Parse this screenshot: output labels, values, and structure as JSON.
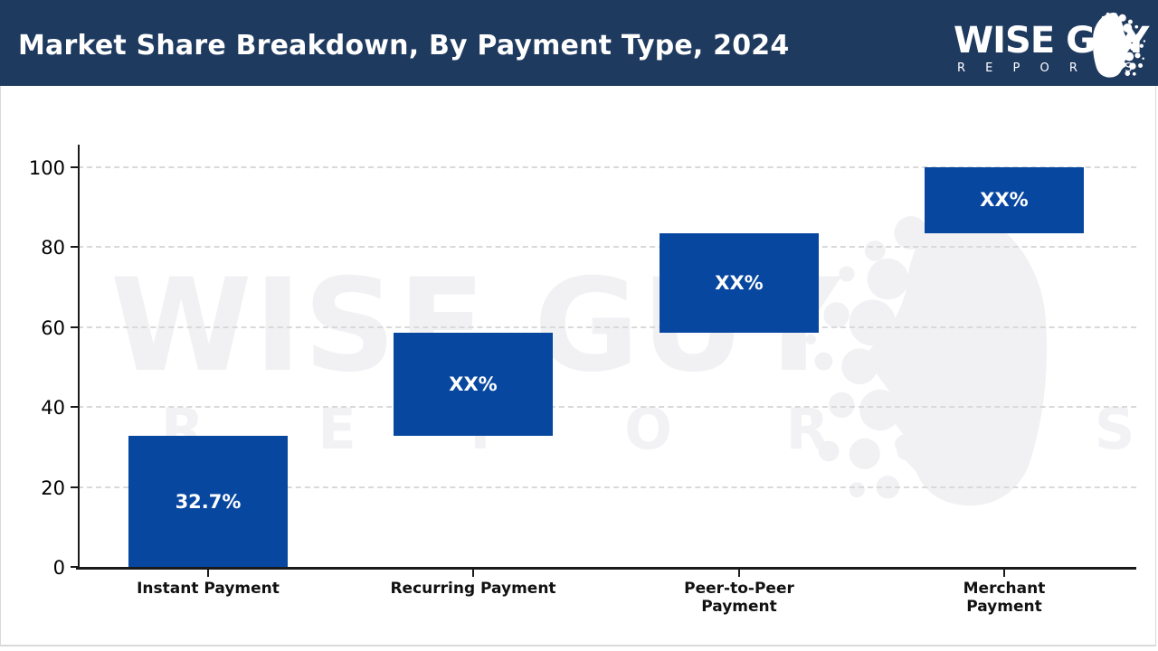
{
  "header": {
    "title": "Market Share Breakdown, By Payment Type, 2024",
    "logo": {
      "name": "WISE GUY",
      "tagline": "R E P O R T S"
    }
  },
  "watermark": {
    "line1": "WISE GUY",
    "line2": "R E P O R T S"
  },
  "chart_data": {
    "type": "bar",
    "subtype": "floating-waterfall",
    "title": "Market Share Breakdown, By Payment Type, 2024",
    "categories": [
      "Instant Payment",
      "Recurring Payment",
      "Peer-to-Peer\nPayment",
      "Merchant Payment"
    ],
    "segments": [
      {
        "category": "Instant Payment",
        "start": 0,
        "end": 32.7,
        "label": "32.7%"
      },
      {
        "category": "Recurring Payment",
        "start": 32.7,
        "end": 58.6,
        "label": "XX%"
      },
      {
        "category": "Peer-to-Peer Payment",
        "start": 58.6,
        "end": 83.5,
        "label": "XX%"
      },
      {
        "category": "Merchant Payment",
        "start": 83.5,
        "end": 100,
        "label": "XX%"
      }
    ],
    "xlabel": "",
    "ylabel": "",
    "ylim": [
      0,
      105
    ],
    "yticks": [
      0,
      20,
      40,
      60,
      80,
      100
    ],
    "grid": "horizontal-dashed",
    "legend": "none",
    "colors": {
      "bar": "#0847a0",
      "bar_label": "#ffffff",
      "axis": "#1a1a1a",
      "grid": "#d9d9d9",
      "header_bg": "#1f3a5f",
      "watermark": "#f1f1f4"
    }
  }
}
